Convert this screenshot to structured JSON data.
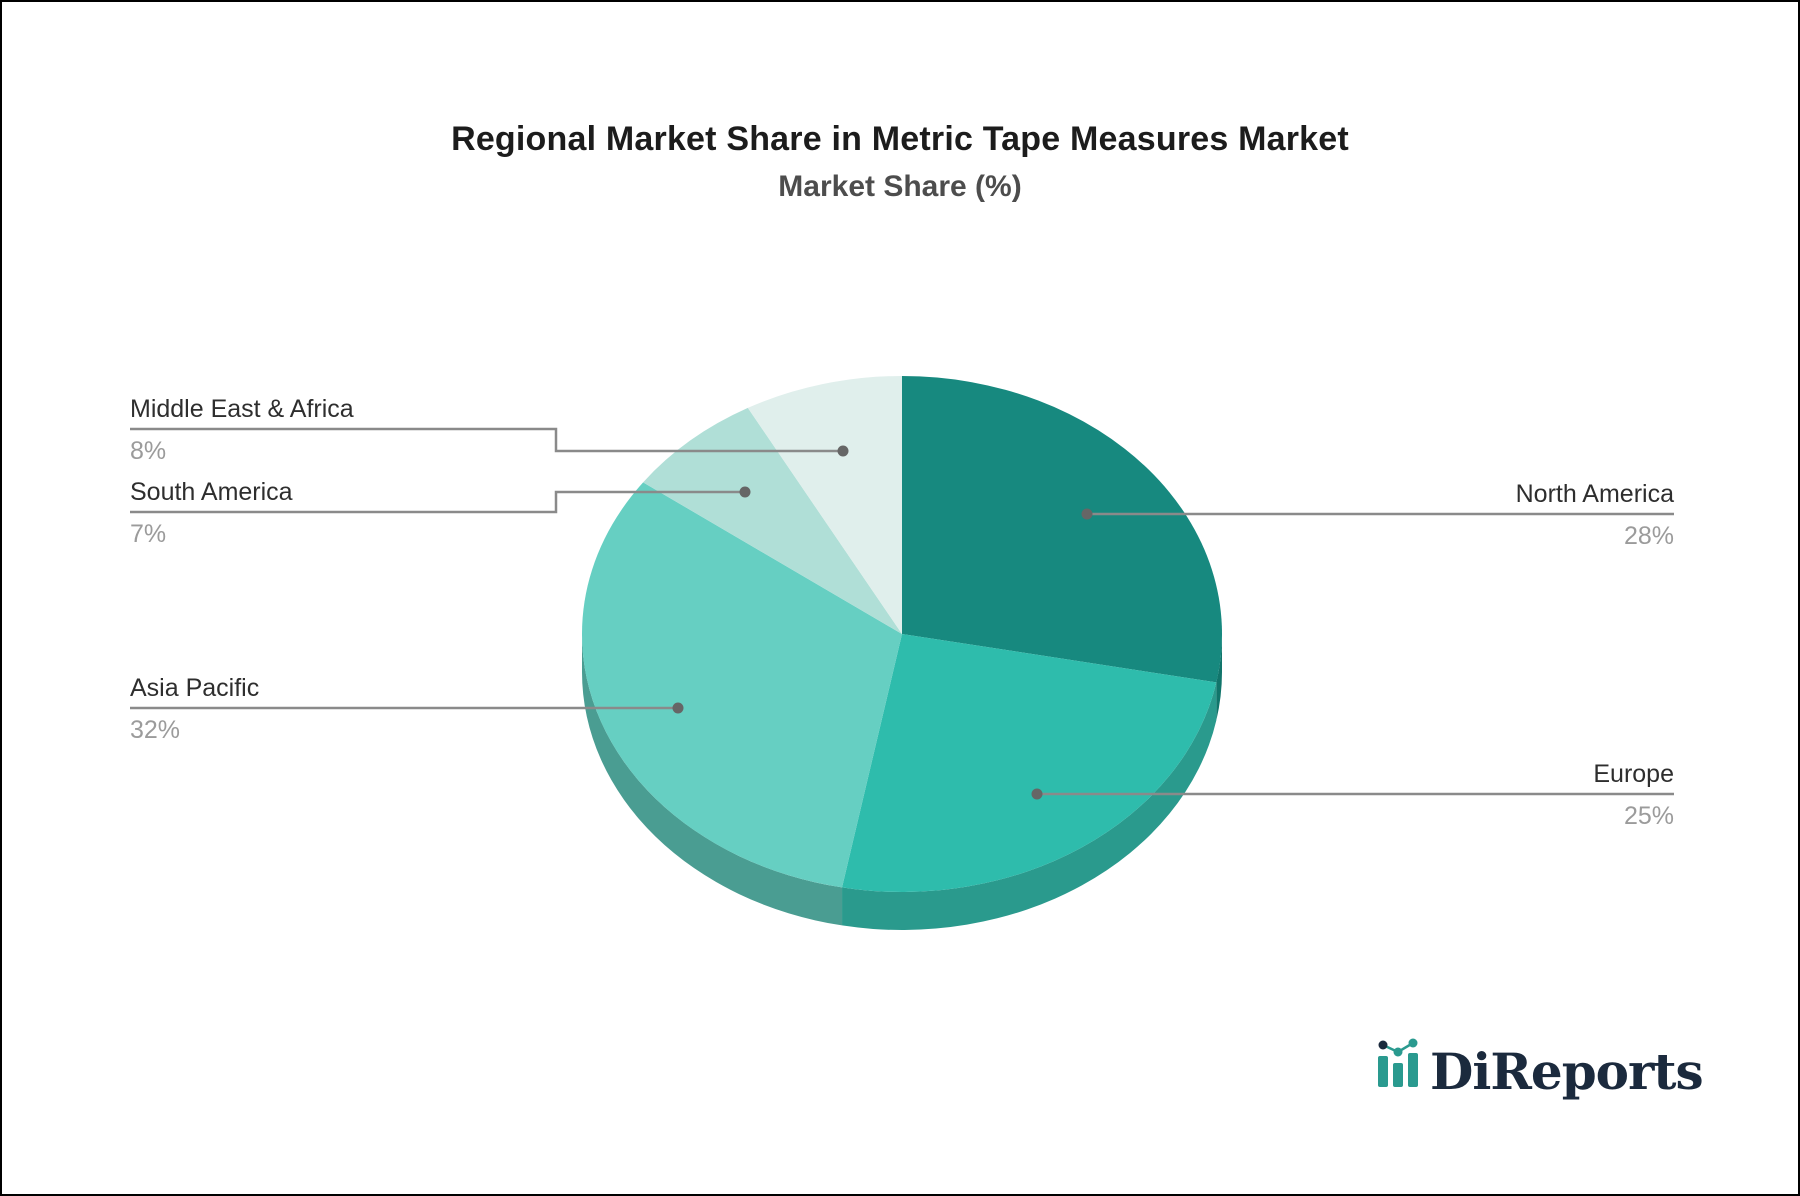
{
  "header": {
    "title": "Regional Market Share in Metric Tape Measures Market",
    "subtitle": "Market Share (%)"
  },
  "chart_data": {
    "type": "pie",
    "title": "Regional Market Share in Metric Tape Measures Market",
    "subtitle": "Market Share (%)",
    "unit": "%",
    "start_angle_deg": 0,
    "clockwise": true,
    "style_3d": true,
    "legend_position": "none",
    "segments": [
      {
        "label": "North America",
        "value": 28,
        "color": "#17897F",
        "side_color": "#11756B"
      },
      {
        "label": "Europe",
        "value": 25,
        "color": "#2EBCAC",
        "side_color": "#2A9A8D"
      },
      {
        "label": "Asia Pacific",
        "value": 32,
        "color": "#66CFC2",
        "side_color": "#4A9D92"
      },
      {
        "label": "South America",
        "value": 7,
        "color": "#B0DFD7",
        "side_color": "#8FBFB7"
      },
      {
        "label": "Middle East & Africa",
        "value": 8,
        "color": "#E0EFEC",
        "side_color": "#BCD6D1"
      }
    ]
  },
  "labels": {
    "middle_east_africa": {
      "name": "Middle East & Africa",
      "pct": "8%"
    },
    "south_america": {
      "name": "South America",
      "pct": "7%"
    },
    "asia_pacific": {
      "name": "Asia Pacific",
      "pct": "32%"
    },
    "north_america": {
      "name": "North America",
      "pct": "28%"
    },
    "europe": {
      "name": "Europe",
      "pct": "25%"
    }
  },
  "style": {
    "leader_line_color": "#8a8a8a",
    "leader_dot_color": "#666666",
    "title_color": "#1c1c1c",
    "subtitle_color": "#4d4d4d",
    "pct_color": "#9b9b9b"
  },
  "logo": {
    "text": "DiReports",
    "accent_color": "#2A9A8F",
    "text_color": "#1B2A3D"
  }
}
